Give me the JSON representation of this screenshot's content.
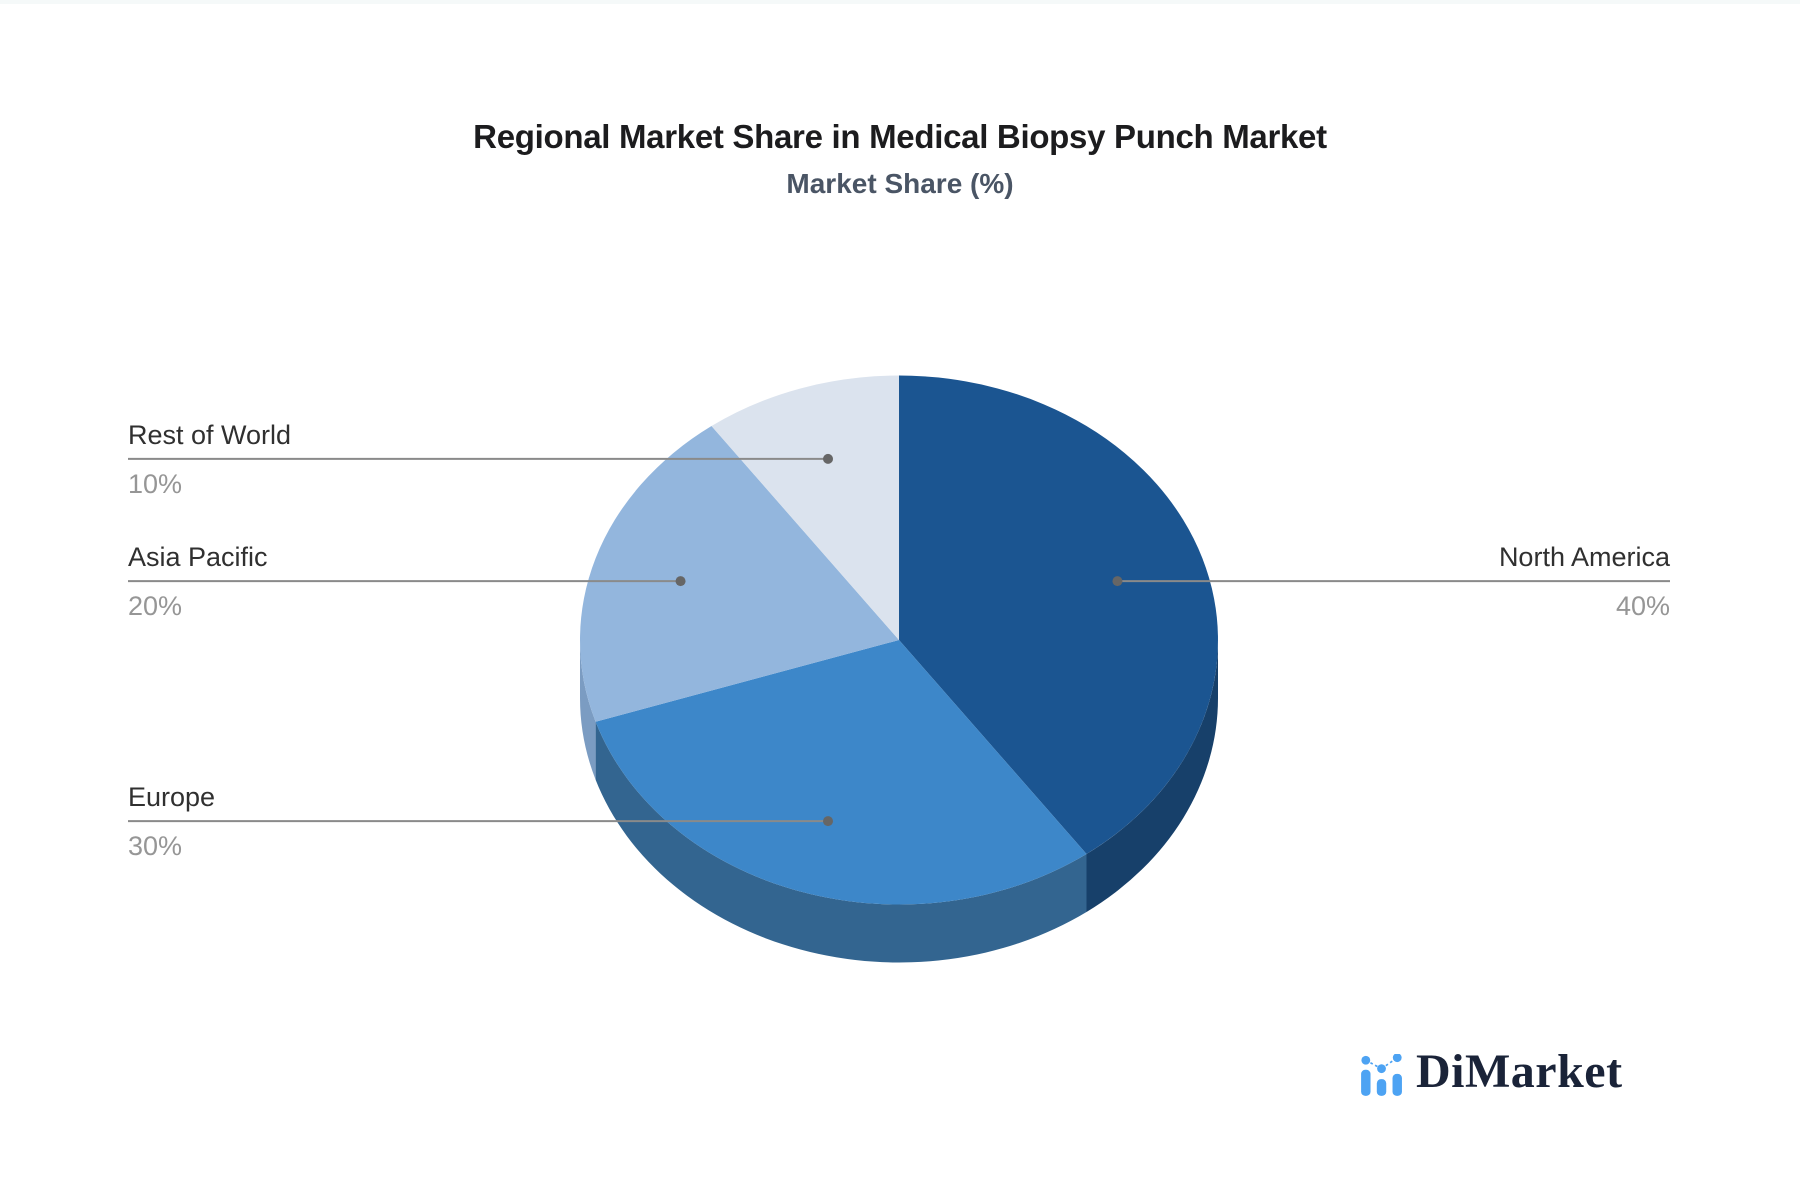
{
  "title": "Regional Market Share in Medical Biopsy Punch Market",
  "subtitle": "Market Share (%)",
  "chart_data": {
    "type": "pie",
    "title": "Regional Market Share in Medical Biopsy Punch Market",
    "subtitle": "Market Share (%)",
    "unit": "%",
    "style": "3d-pie",
    "start_angle_deg": 0,
    "direction": "clockwise",
    "legend_position": "outside-callout-labels",
    "segments": [
      {
        "label": "North America",
        "value": 40,
        "display": "40%",
        "color": "#1b5591",
        "side_color": "#17406a",
        "label_side": "right"
      },
      {
        "label": "Europe",
        "value": 30,
        "display": "30%",
        "color": "#3d87c9",
        "side_color": "#336590",
        "label_side": "left"
      },
      {
        "label": "Asia Pacific",
        "value": 20,
        "display": "20%",
        "color": "#93b6dd",
        "side_color": "#7b9cc2",
        "label_side": "left"
      },
      {
        "label": "Rest of World",
        "value": 10,
        "display": "10%",
        "color": "#dbe3ee",
        "side_color": "#b9c6d8",
        "label_side": "left"
      }
    ]
  },
  "callout": {
    "line_color": "#8a8a8a",
    "dot_color": "#666666",
    "label_color": "#303030",
    "value_color": "#969696"
  },
  "branding": {
    "name": "DiMarket",
    "icon": "bar-chart-trend-icon",
    "icon_color": "#4da3f3",
    "text_color": "#1a2338"
  }
}
